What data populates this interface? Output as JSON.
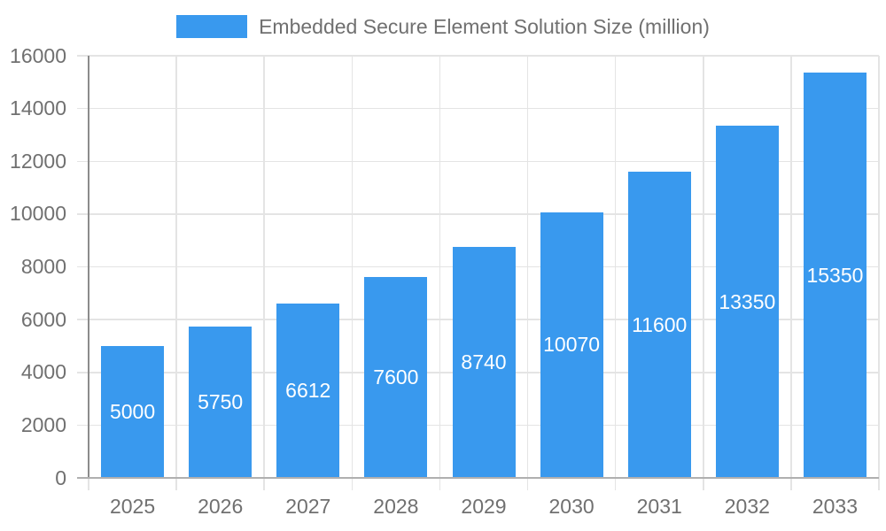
{
  "chart_data": {
    "type": "bar",
    "title": "Embedded Secure Element Solution Size (million)",
    "categories": [
      "2025",
      "2026",
      "2027",
      "2028",
      "2029",
      "2030",
      "2031",
      "2032",
      "2033"
    ],
    "values": [
      5000,
      5750,
      6612,
      7600,
      8740,
      10070,
      11600,
      13350,
      15350
    ],
    "xlabel": "",
    "ylabel": "",
    "ylim": [
      0,
      16000
    ],
    "yticks": [
      0,
      2000,
      4000,
      6000,
      8000,
      10000,
      12000,
      14000,
      16000
    ],
    "grid": true,
    "legend": {
      "position": "top",
      "label": "Embedded Secure Element Solution Size (million)"
    },
    "colors": {
      "bar": "#3999ee",
      "bar_label": "#ffffff",
      "tick_text": "#707070",
      "legend_text": "#707070",
      "gridline": "#e4e4e4",
      "y_axis_line": "#8c8c8c",
      "x_axis_line": "#b0b0b0",
      "background": "#ffffff"
    }
  }
}
